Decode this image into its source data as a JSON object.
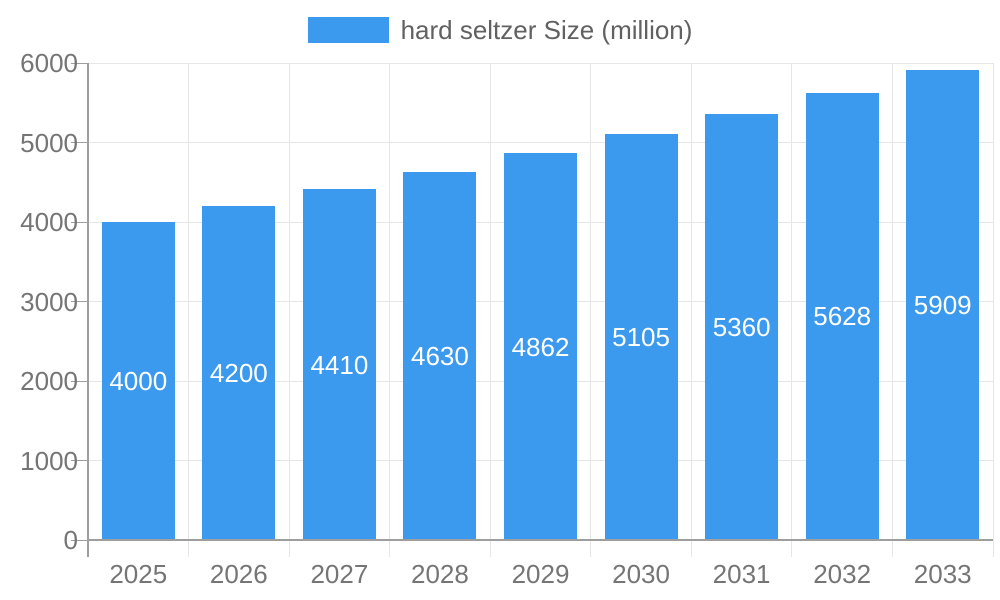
{
  "legend": {
    "label": "hard seltzer Size (million)"
  },
  "chart_data": {
    "type": "bar",
    "title": "",
    "xlabel": "",
    "ylabel": "",
    "categories": [
      "2025",
      "2026",
      "2027",
      "2028",
      "2029",
      "2030",
      "2031",
      "2032",
      "2033"
    ],
    "series": [
      {
        "name": "hard seltzer Size (million)",
        "values": [
          4000,
          4200,
          4410,
          4630,
          4862,
          5105,
          5360,
          5628,
          5909
        ]
      }
    ],
    "value_labels": [
      4000,
      4200,
      4410,
      4630,
      4862,
      5105,
      5360,
      5628,
      5909
    ],
    "ylim": [
      0,
      6000
    ],
    "yticks": [
      0,
      1000,
      2000,
      3000,
      4000,
      5000,
      6000
    ],
    "grid": true,
    "legend_position": "top-center"
  },
  "colors": {
    "bar": "#3b99ee",
    "grid": "#e6e6e6",
    "axis": "#9e9e9e",
    "tick_label": "#757575",
    "legend_text": "#616161",
    "value_label": "#ffffff",
    "background": "#ffffff"
  }
}
